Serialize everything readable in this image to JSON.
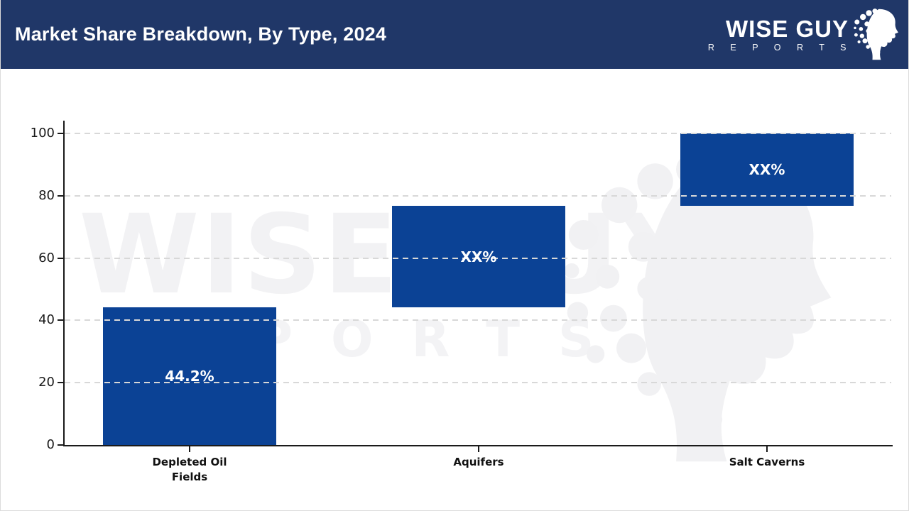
{
  "header": {
    "title": "Market Share Breakdown, By Type, 2024",
    "bg_color": "#203768",
    "brand": {
      "name_top": "WISE GUY",
      "name_bottom": "R E P O R T S",
      "head_icon": "dotted-head-profile-icon"
    }
  },
  "watermark": {
    "big_text": "WISE GUY",
    "small_text": "R E P O R T S"
  },
  "chart_data": {
    "type": "bar",
    "variant": "floating-segment-waterfall",
    "title": "Market Share Breakdown, By Type, 2024",
    "categories": [
      "Depleted Oil Fields",
      "Aquifers",
      "Salt Caverns"
    ],
    "segments": [
      {
        "category": "Depleted Oil Fields",
        "start": 0,
        "end": 44.2,
        "label": "44.2%"
      },
      {
        "category": "Aquifers",
        "start": 44.2,
        "end": 76.7,
        "label": "XX%"
      },
      {
        "category": "Salt Caverns",
        "start": 76.7,
        "end": 100,
        "label": "XX%"
      }
    ],
    "xlabel": "",
    "ylabel": "",
    "ylim": [
      0,
      100
    ],
    "yticks": [
      0,
      20,
      40,
      60,
      80,
      100
    ],
    "grid": {
      "axis": "y",
      "style": "dashed",
      "color": "#d8d8d8",
      "drawn_above_bars": true
    },
    "legend": "none",
    "bar_color": "#0b4295",
    "bar_label_color": "#ffffff",
    "axis_color": "#1a1a1a",
    "tick_label_color": "#1a1a1a"
  }
}
